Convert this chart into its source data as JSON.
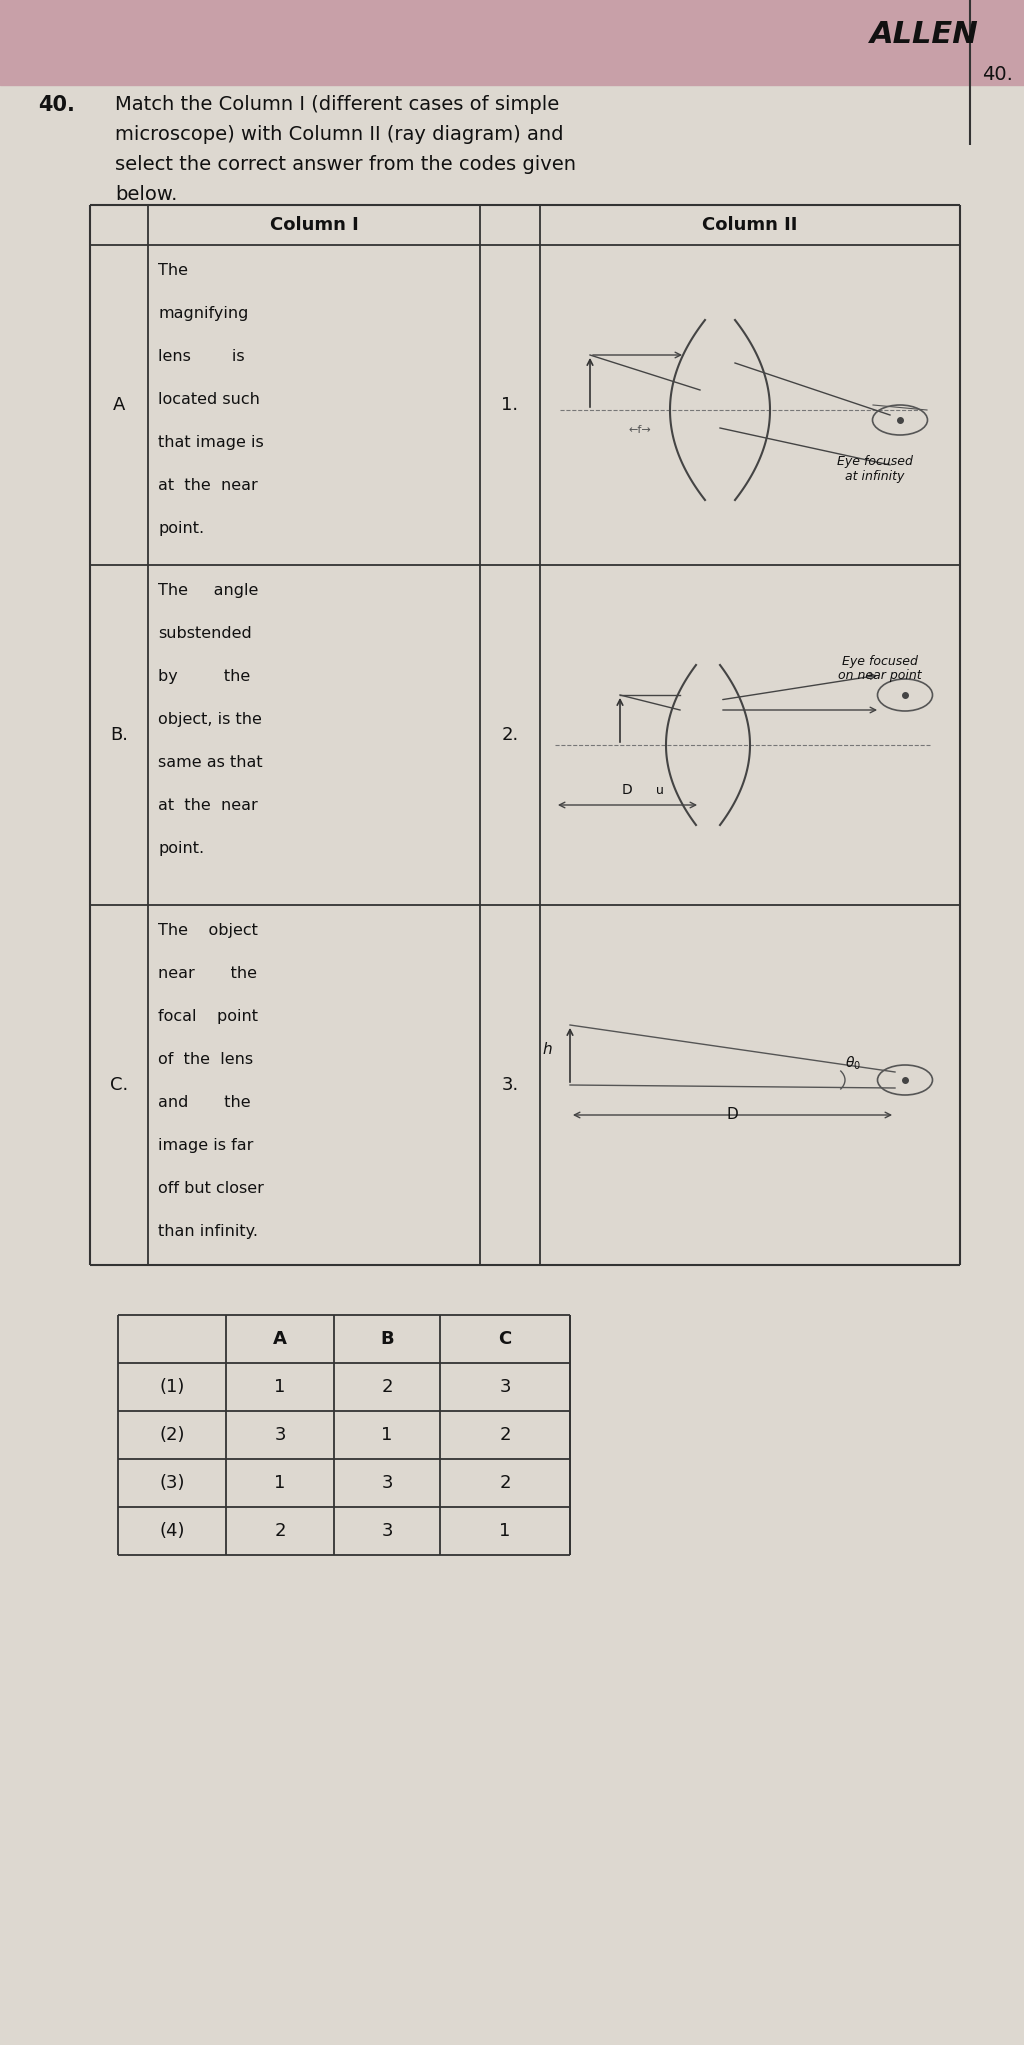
{
  "background_color": "#ddd8d0",
  "text_color": "#111111",
  "border_color": "#333333",
  "allen_text": "ALLEN",
  "allen_num": "40.",
  "q_num": "40.",
  "q_text_line1": "Match the Column I (different cases of simple",
  "q_text_line2": "microscope) with Column II (ray diagram) and",
  "q_text_line3": "select the correct answer from the codes given",
  "q_text_line4": "below.",
  "col1_header": "Column I",
  "col2_header": "Column II",
  "rowA_label": "A",
  "rowA_text": [
    "The",
    "magnifying",
    "lens        is",
    "located such",
    "that image is",
    "at  the  near",
    "point."
  ],
  "rowA_num": "1.",
  "rowA_caption": [
    "Eye focused",
    "at infinity"
  ],
  "rowB_label": "B.",
  "rowB_text": [
    "The     angle",
    "substended",
    "by         the",
    "object, is the",
    "same as that",
    "at  the  near",
    "point."
  ],
  "rowB_num": "2.",
  "rowB_caption": [
    "Eye focused",
    "on near point"
  ],
  "rowC_label": "C.",
  "rowC_text": [
    "The    object",
    "near       the",
    "focal    point",
    "of  the  lens",
    "and       the",
    "image is far",
    "off but closer",
    "than infinity."
  ],
  "rowC_num": "3.",
  "ans_headers": [
    "",
    "A",
    "B",
    "C"
  ],
  "ans_rows": [
    [
      "(1)",
      "1",
      "2",
      "3"
    ],
    [
      "(2)",
      "3",
      "1",
      "2"
    ],
    [
      "(3)",
      "1",
      "3",
      "2"
    ],
    [
      "(4)",
      "2",
      "3",
      "1"
    ]
  ]
}
